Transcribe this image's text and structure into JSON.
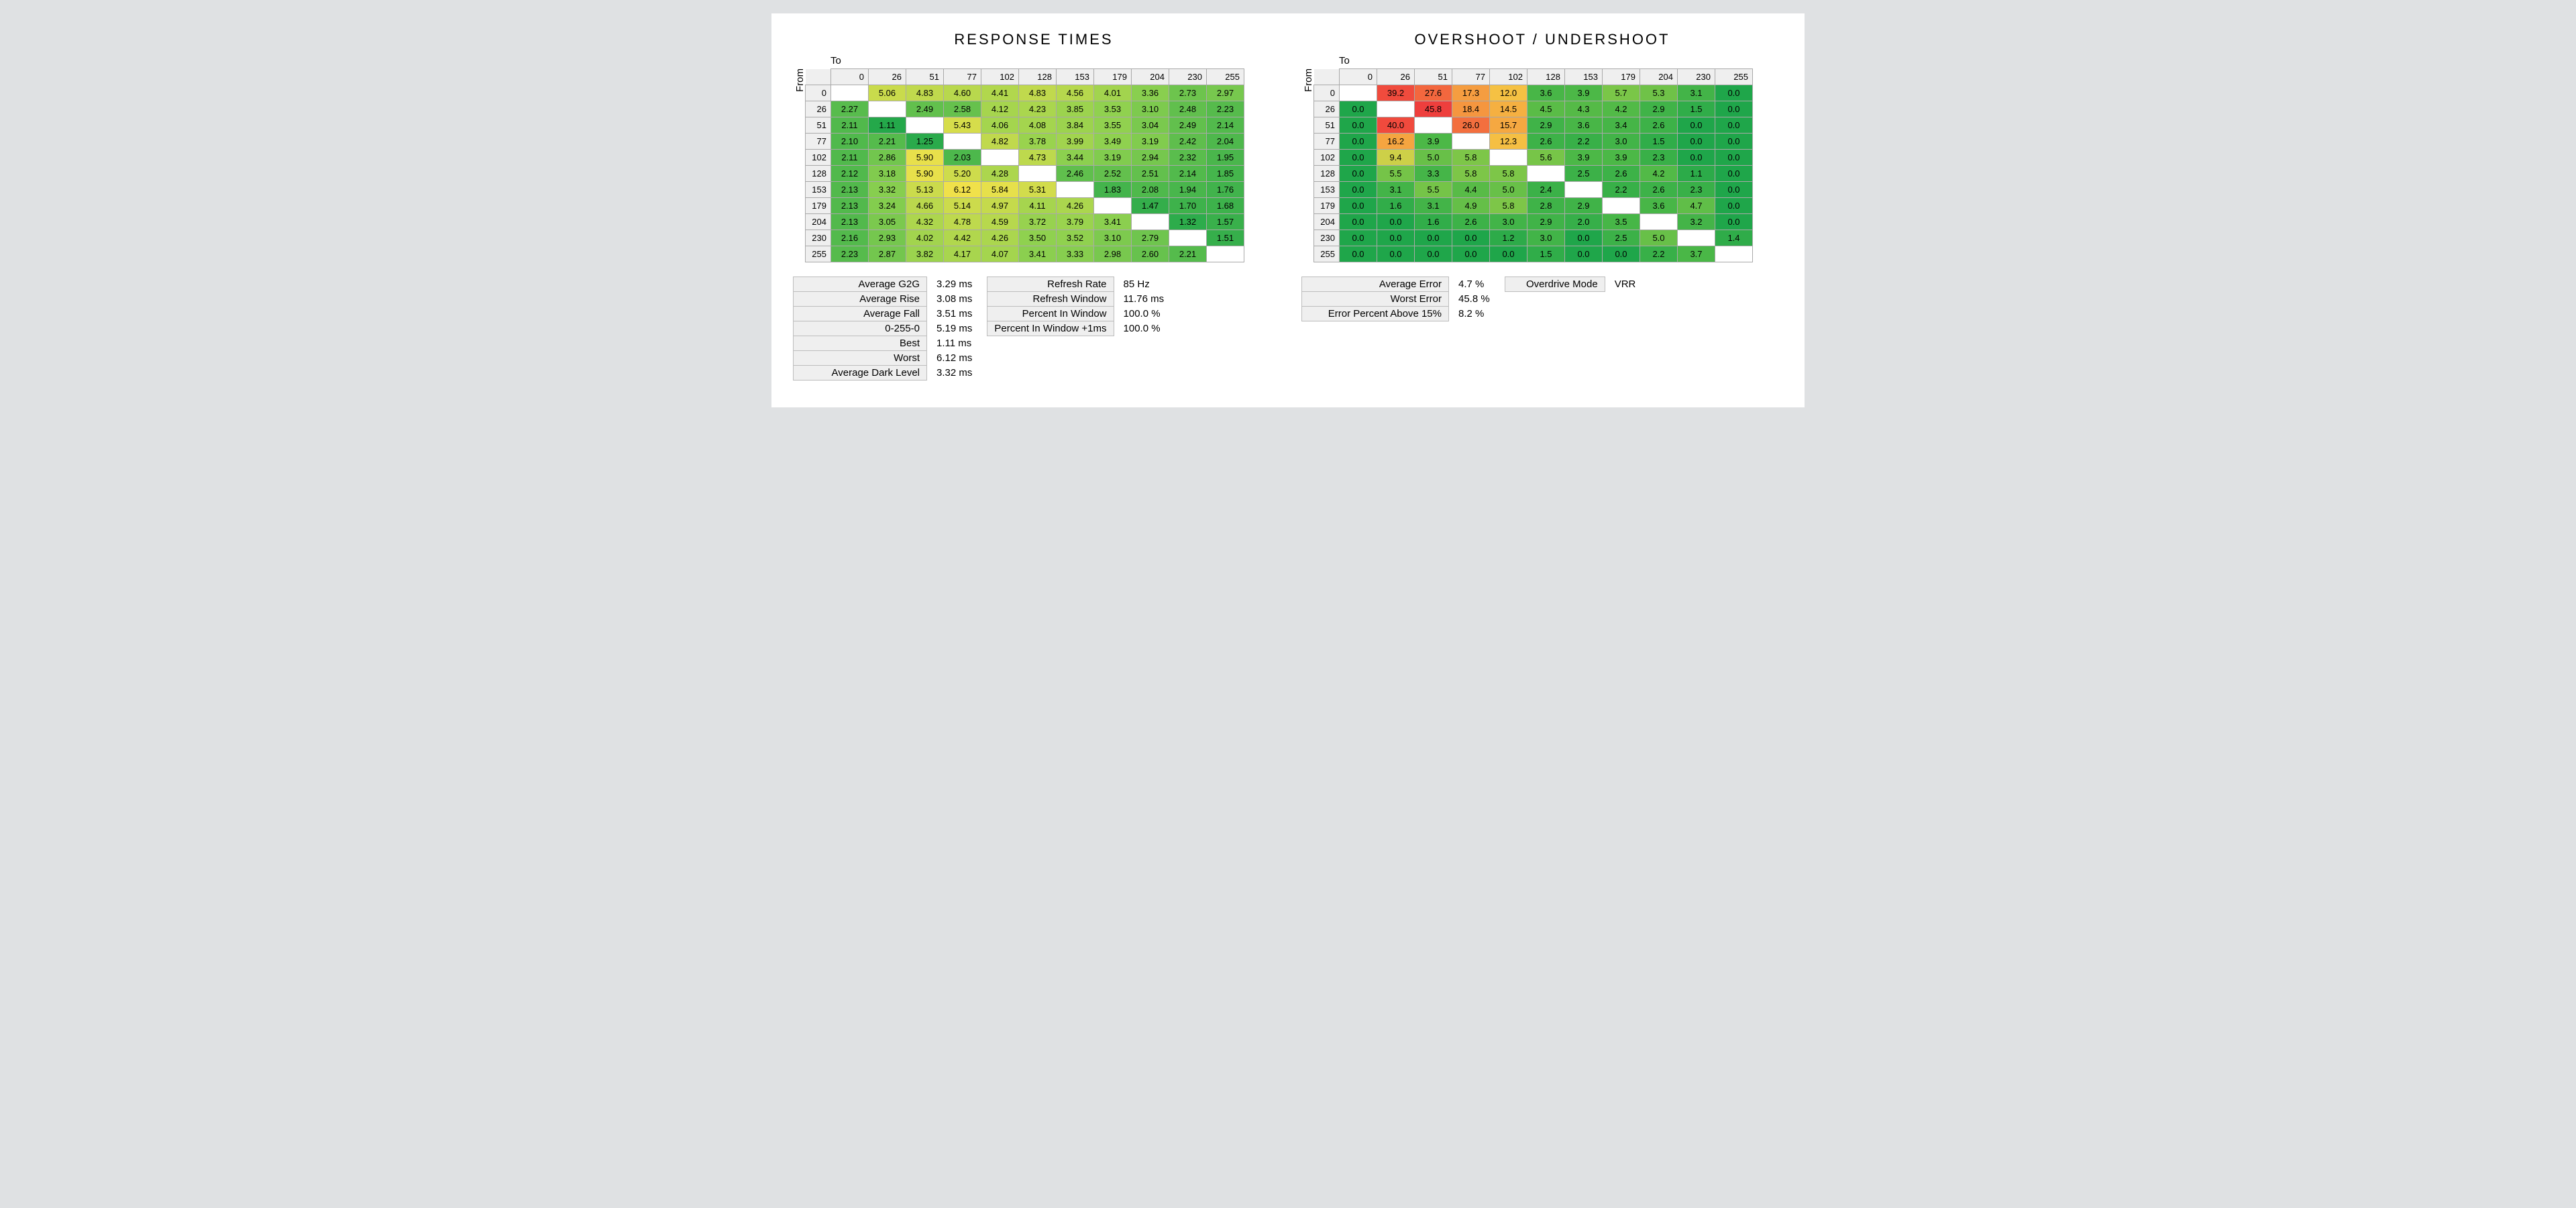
{
  "titles": {
    "left": "RESPONSE TIMES",
    "right": "OVERSHOOT / UNDERSHOOT"
  },
  "axis": {
    "to_label": "To",
    "from_label": "From",
    "levels": [
      0,
      26,
      51,
      77,
      102,
      128,
      153,
      179,
      204,
      230,
      255
    ]
  },
  "response": {
    "decimals": 2,
    "color_scale": {
      "min": 1.0,
      "min_color": "#1fa64a",
      "mid": 3.5,
      "mid_color": "#8fd14f",
      "max": 6.2,
      "max_color": "#f3e24a"
    },
    "rows": [
      [
        null,
        5.06,
        4.83,
        4.6,
        4.41,
        4.83,
        4.56,
        4.01,
        3.36,
        2.73,
        2.97
      ],
      [
        2.27,
        null,
        2.49,
        2.58,
        4.12,
        4.23,
        3.85,
        3.53,
        3.1,
        2.48,
        2.23
      ],
      [
        2.11,
        1.11,
        null,
        5.43,
        4.06,
        4.08,
        3.84,
        3.55,
        3.04,
        2.49,
        2.14
      ],
      [
        2.1,
        2.21,
        1.25,
        null,
        4.82,
        3.78,
        3.99,
        3.49,
        3.19,
        2.42,
        2.04
      ],
      [
        2.11,
        2.86,
        5.9,
        2.03,
        null,
        4.73,
        3.44,
        3.19,
        2.94,
        2.32,
        1.95
      ],
      [
        2.12,
        3.18,
        5.9,
        5.2,
        4.28,
        null,
        2.46,
        2.52,
        2.51,
        2.14,
        1.85
      ],
      [
        2.13,
        3.32,
        5.13,
        6.12,
        5.84,
        5.31,
        null,
        1.83,
        2.08,
        1.94,
        1.76
      ],
      [
        2.13,
        3.24,
        4.66,
        5.14,
        4.97,
        4.11,
        4.26,
        null,
        1.47,
        1.7,
        1.68
      ],
      [
        2.13,
        3.05,
        4.32,
        4.78,
        4.59,
        3.72,
        3.79,
        3.41,
        null,
        1.32,
        1.57
      ],
      [
        2.16,
        2.93,
        4.02,
        4.42,
        4.26,
        3.5,
        3.52,
        3.1,
        2.79,
        null,
        1.51
      ],
      [
        2.23,
        2.87,
        3.82,
        4.17,
        4.07,
        3.41,
        3.33,
        2.98,
        2.6,
        2.21,
        null
      ]
    ]
  },
  "overshoot": {
    "decimals": 1,
    "color_scale": {
      "stops": [
        {
          "v": 0,
          "c": "#1fa64a"
        },
        {
          "v": 4,
          "c": "#4db847"
        },
        {
          "v": 8,
          "c": "#b7d84a"
        },
        {
          "v": 12,
          "c": "#f5c143"
        },
        {
          "v": 20,
          "c": "#f58b3e"
        },
        {
          "v": 30,
          "c": "#f25c3e"
        },
        {
          "v": 46,
          "c": "#ee3f3d"
        }
      ]
    },
    "rows": [
      [
        null,
        39.2,
        27.6,
        17.3,
        12.0,
        3.6,
        3.9,
        5.7,
        5.3,
        3.1,
        0.0
      ],
      [
        0.0,
        null,
        45.8,
        18.4,
        14.5,
        4.5,
        4.3,
        4.2,
        2.9,
        1.5,
        0.0
      ],
      [
        0.0,
        40.0,
        null,
        26.0,
        15.7,
        2.9,
        3.6,
        3.4,
        2.6,
        0.0,
        0.0
      ],
      [
        0.0,
        16.2,
        3.9,
        null,
        12.3,
        2.6,
        2.2,
        3.0,
        1.5,
        0.0,
        0.0
      ],
      [
        0.0,
        9.4,
        5.0,
        5.8,
        null,
        5.6,
        3.9,
        3.9,
        2.3,
        0.0,
        0.0
      ],
      [
        0.0,
        5.5,
        3.3,
        5.8,
        5.8,
        null,
        2.5,
        2.6,
        4.2,
        1.1,
        0.0
      ],
      [
        0.0,
        3.1,
        5.5,
        4.4,
        5.0,
        2.4,
        null,
        2.2,
        2.6,
        2.3,
        0.0
      ],
      [
        0.0,
        1.6,
        3.1,
        4.9,
        5.8,
        2.8,
        2.9,
        null,
        3.6,
        4.7,
        0.0
      ],
      [
        0.0,
        0.0,
        1.6,
        2.6,
        3.0,
        2.9,
        2.0,
        3.5,
        null,
        3.2,
        0.0
      ],
      [
        0.0,
        0.0,
        0.0,
        0.0,
        1.2,
        3.0,
        0.0,
        2.5,
        5.0,
        null,
        1.4
      ],
      [
        0.0,
        0.0,
        0.0,
        0.0,
        0.0,
        1.5,
        0.0,
        0.0,
        2.2,
        3.7,
        null
      ]
    ]
  },
  "stats_left_a": [
    {
      "label": "Average G2G",
      "value": "3.29 ms"
    },
    {
      "label": "Average Rise",
      "value": "3.08 ms"
    },
    {
      "label": "Average Fall",
      "value": "3.51 ms"
    },
    {
      "label": "0-255-0",
      "value": "5.19 ms"
    },
    {
      "label": "Best",
      "value": "1.11 ms"
    },
    {
      "label": "Worst",
      "value": "6.12 ms"
    },
    {
      "label": "Average Dark Level",
      "value": "3.32 ms"
    }
  ],
  "stats_left_b": [
    {
      "label": "Refresh Rate",
      "value": "85 Hz"
    },
    {
      "label": "Refresh Window",
      "value": "11.76 ms"
    },
    {
      "label": "Percent In Window",
      "value": "100.0 %"
    },
    {
      "label": "Percent In Window +1ms",
      "value": "100.0 %"
    }
  ],
  "stats_right_a": [
    {
      "label": "Average Error",
      "value": "4.7 %"
    },
    {
      "label": "Worst Error",
      "value": "45.8 %"
    },
    {
      "label": "Error Percent Above 15%",
      "value": "8.2 %"
    }
  ],
  "stats_right_b": [
    {
      "label": "Overdrive Mode",
      "value": "VRR"
    }
  ]
}
